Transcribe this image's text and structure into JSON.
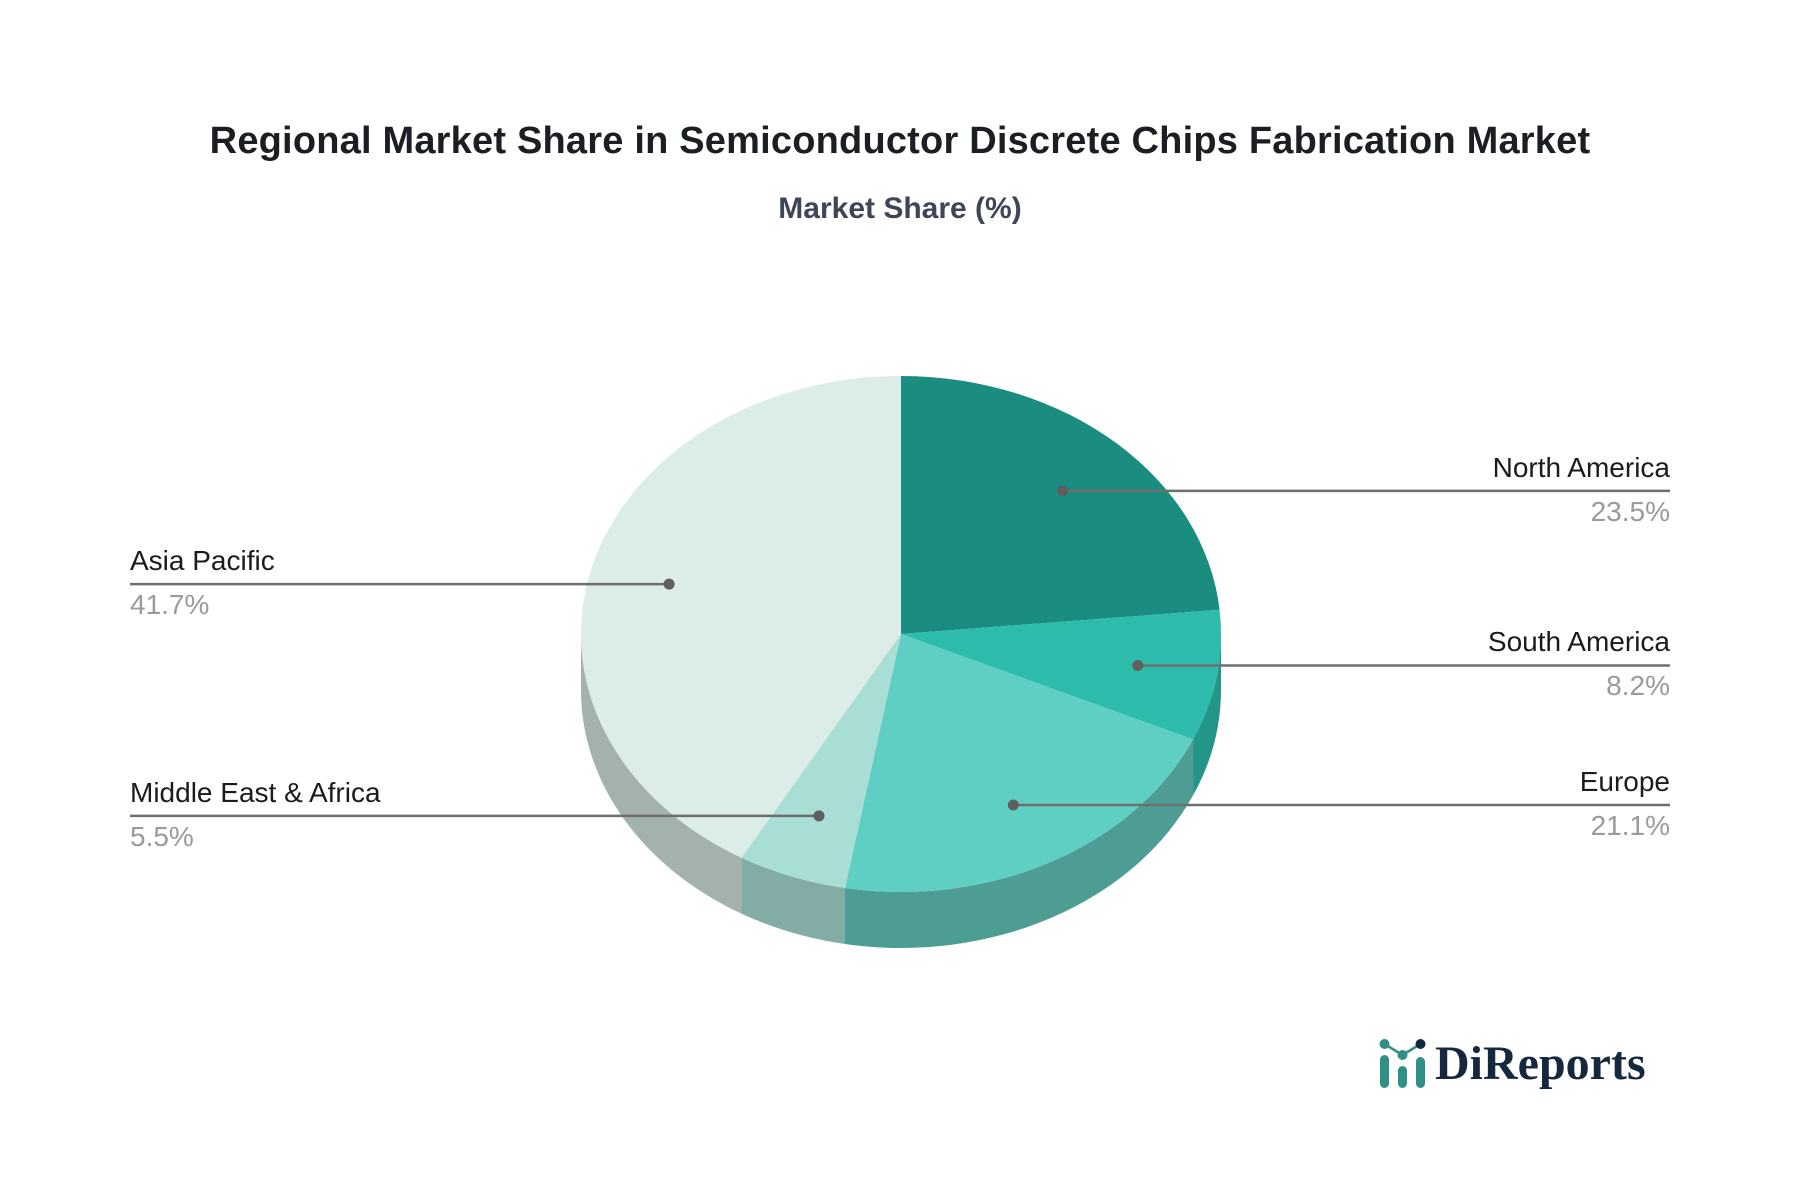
{
  "brand": {
    "name": "DiReports",
    "icon": "bar-chart-trend-icon",
    "icon_color": "#2e9087",
    "accent_dot_color": "#16283e",
    "text_color": "#16283e"
  },
  "colors": {
    "background": "#ffffff",
    "title_text": "#1b1f24",
    "subtitle_text": "#3c4657",
    "label_text": "#1b1b1b",
    "pct_text": "#9a9a9a",
    "leader_line": "#6e6e6e",
    "leader_dot": "#5f5f5f"
  },
  "chart_data": {
    "type": "pie",
    "title": "Regional Market Share in Semiconductor Discrete Chips Fabrication Market",
    "subtitle": "Market Share (%)",
    "unit": "%",
    "effect_3d": true,
    "start_angle_deg": 0,
    "clockwise": true,
    "legend_position": "none",
    "slices": [
      {
        "label": "North America",
        "value": 23.5,
        "pct_label": "23.5%",
        "color": "#1a8c80",
        "wall_color": "#157065",
        "label_side": "right"
      },
      {
        "label": "South America",
        "value": 8.2,
        "pct_label": "8.2%",
        "color": "#2dbcab",
        "wall_color": "#249689",
        "label_side": "right"
      },
      {
        "label": "Europe",
        "value": 21.1,
        "pct_label": "21.1%",
        "color": "#5fcfc3",
        "wall_color": "#4d9d94",
        "label_side": "right"
      },
      {
        "label": "Middle East & Africa",
        "value": 5.5,
        "pct_label": "5.5%",
        "color": "#a8ded5",
        "wall_color": "#83aca6",
        "label_side": "left"
      },
      {
        "label": "Asia Pacific",
        "value": 41.7,
        "pct_label": "41.7%",
        "color": "#dcece8",
        "wall_color": "#a3b2ae",
        "label_side": "left"
      }
    ]
  }
}
